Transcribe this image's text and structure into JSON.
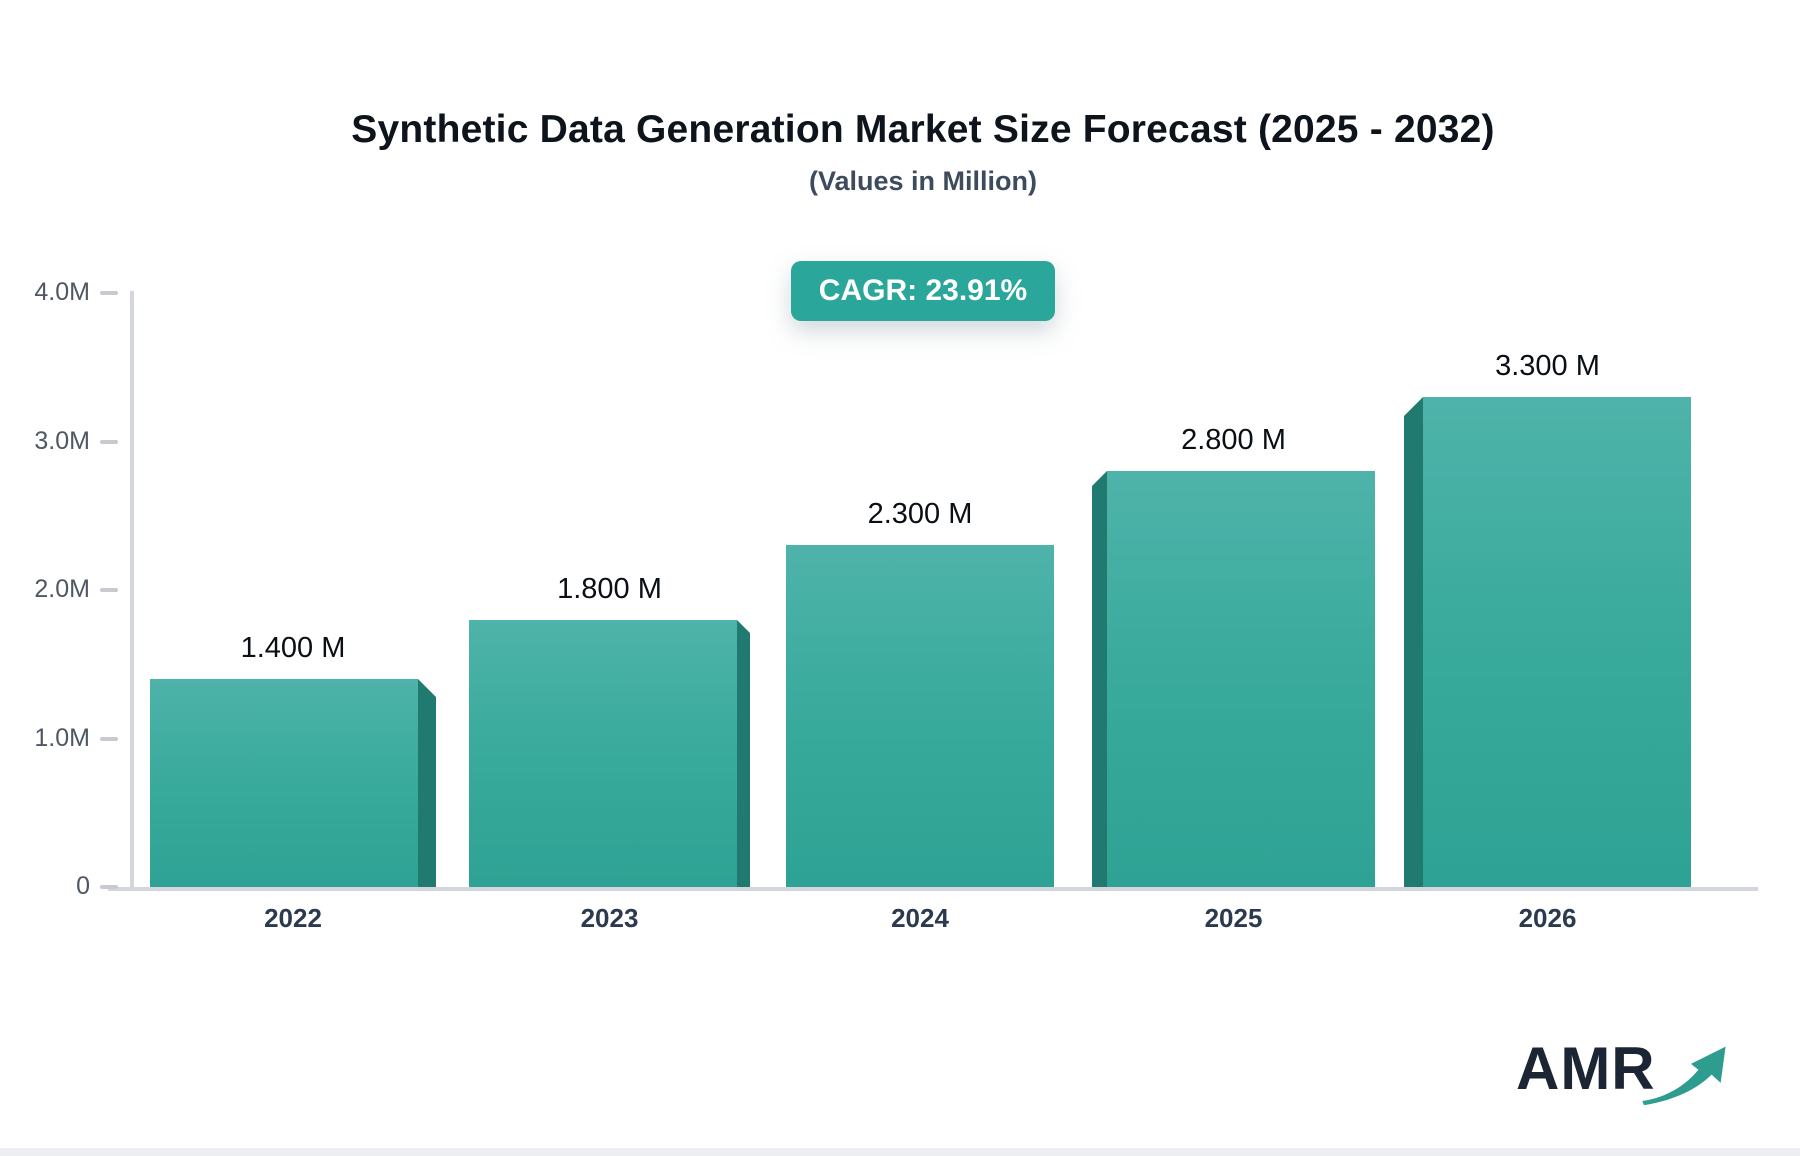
{
  "header": {
    "title": "Synthetic Data Generation Market Size Forecast (2025 - 2032)",
    "subtitle": "(Values in Million)",
    "cagr_badge": "CAGR: 23.91%"
  },
  "logo": {
    "text": "AMR",
    "icon": "growth-arrow-icon",
    "text_color": "#1B2533",
    "arrow_color": "#2E9C8E"
  },
  "colors": {
    "badge_background": "#2AA69A",
    "bar_top": "#4FB3AA",
    "bar_bottom": "#2EA294",
    "bar_side": "#207A70",
    "axis_line": "#D3D6DC"
  },
  "chart_data": {
    "type": "bar",
    "title": "Synthetic Data Generation Market Size Forecast (2025 - 2032)",
    "subtitle": "(Values in Million)",
    "cagr_label": "CAGR: 23.91%",
    "categories": [
      "2022",
      "2023",
      "2024",
      "2025",
      "2026"
    ],
    "values_millions": [
      1.4,
      1.8,
      2.3,
      2.8,
      3.3
    ],
    "bar_labels": [
      "1.400 M",
      "1.800 M",
      "2.300 M",
      "2.800 M",
      "3.300 M"
    ],
    "ylabel": "",
    "xlabel": "",
    "ylim": [
      0,
      4.0
    ],
    "y_axis_ticks": [
      {
        "label": "4.0M",
        "value": 4.0
      },
      {
        "label": "3.0M",
        "value": 3.0
      },
      {
        "label": "2.0M",
        "value": 2.0
      },
      {
        "label": "1.0M",
        "value": 1.0
      },
      {
        "label": "0",
        "value": 0
      }
    ],
    "grid": false,
    "legend": false,
    "bar_style": "3d-extruded"
  }
}
